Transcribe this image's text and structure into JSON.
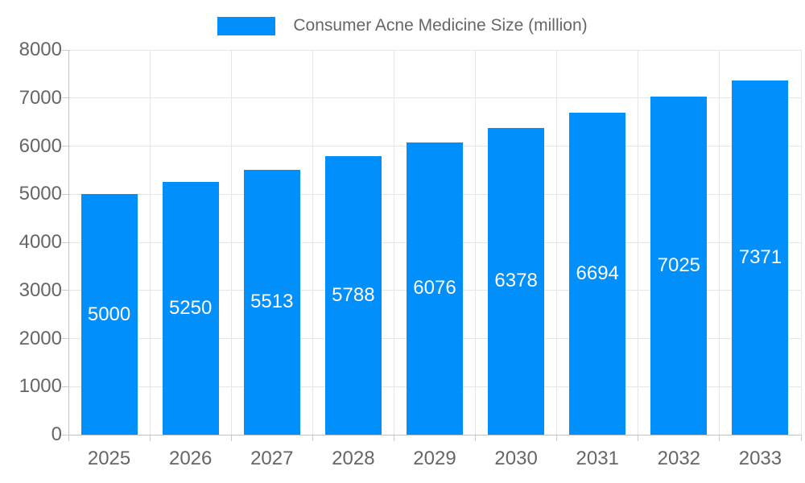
{
  "legend": {
    "label": "Consumer Acne Medicine Size (million)"
  },
  "chart_data": {
    "type": "bar",
    "title": "Consumer Acne Medicine Size (million)",
    "categories": [
      "2025",
      "2026",
      "2027",
      "2028",
      "2029",
      "2030",
      "2031",
      "2032",
      "2033"
    ],
    "values": [
      5000,
      5250,
      5513,
      5788,
      6076,
      6378,
      6694,
      7025,
      7371
    ],
    "xlabel": "",
    "ylabel": "",
    "ylim": [
      0,
      8000
    ],
    "yticks": [
      0,
      1000,
      2000,
      3000,
      4000,
      5000,
      6000,
      7000,
      8000
    ],
    "grid": true,
    "legend_position": "top",
    "bar_labels_visible": true,
    "colors": {
      "bar": "#008FFB",
      "bar_label": "#ffffff",
      "grid": "#e6e6e6",
      "axis": "#c4c4c4",
      "tick": "#c9c9c9",
      "label": "#666666",
      "legend_text": "#666666",
      "background": "#ffffff"
    }
  }
}
